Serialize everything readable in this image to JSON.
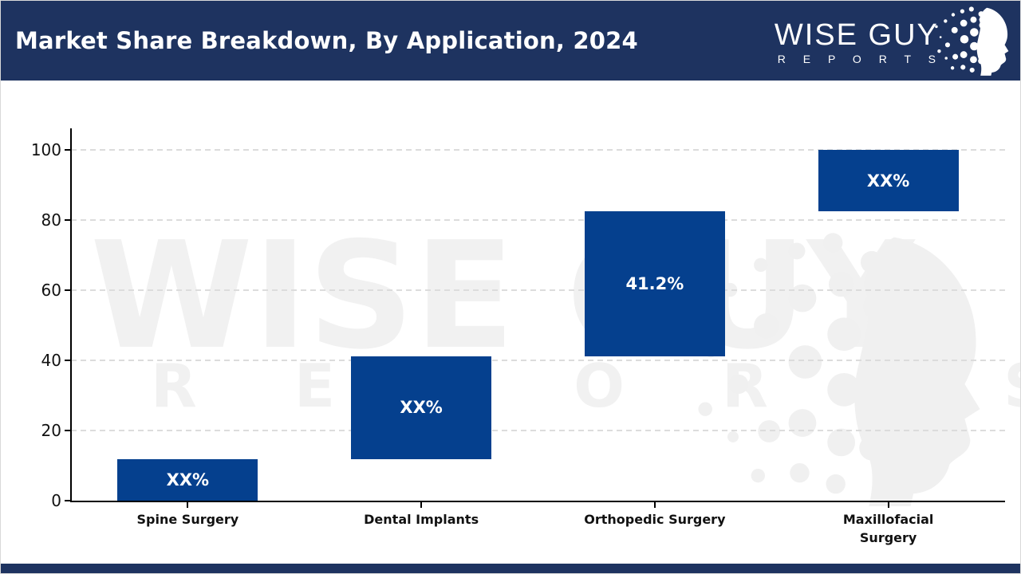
{
  "header": {
    "title": "Market Share Breakdown, By Application, 2024",
    "brand": {
      "line1": "WISE GUY",
      "line2": "R E P O R T S"
    }
  },
  "watermark": {
    "line1": "WISE GUY",
    "line2": "R E P O R T S"
  },
  "chart_data": {
    "type": "bar",
    "subtype": "waterfall",
    "title": "Market Share Breakdown, By Application, 2024",
    "categories": [
      "Spine Surgery",
      "Dental Implants",
      "Orthopedic Surgery",
      "Maxillofacial Surgery"
    ],
    "category_label_lines": [
      [
        "Spine Surgery"
      ],
      [
        "Dental Implants"
      ],
      [
        "Orthopedic Surgery"
      ],
      [
        "Maxillofacial",
        "Surgery"
      ]
    ],
    "segments": [
      {
        "category": "Spine Surgery",
        "start": 0,
        "end": 11.8,
        "value": 11.8,
        "label": "XX%"
      },
      {
        "category": "Dental Implants",
        "start": 11.8,
        "end": 41.2,
        "value": 29.4,
        "label": "XX%"
      },
      {
        "category": "Orthopedic Surgery",
        "start": 41.2,
        "end": 82.4,
        "value": 41.2,
        "label": "41.2%"
      },
      {
        "category": "Maxillofacial Surgery",
        "start": 82.4,
        "end": 100,
        "value": 17.6,
        "label": "XX%"
      }
    ],
    "ylim": [
      0,
      100
    ],
    "yticks": [
      0,
      20,
      40,
      60,
      80,
      100
    ],
    "xlabel": "",
    "ylabel": "",
    "grid": "horizontal-dashed",
    "legend": "none"
  },
  "colors": {
    "header_bg": "#1e3360",
    "footer_bg": "#1e3360",
    "bar": "#05408e",
    "bar_label": "#ffffff",
    "grid": "#dcdcdc",
    "axis": "#000000",
    "watermark": "#f1f1f1",
    "frame": "#d9d9d9"
  }
}
